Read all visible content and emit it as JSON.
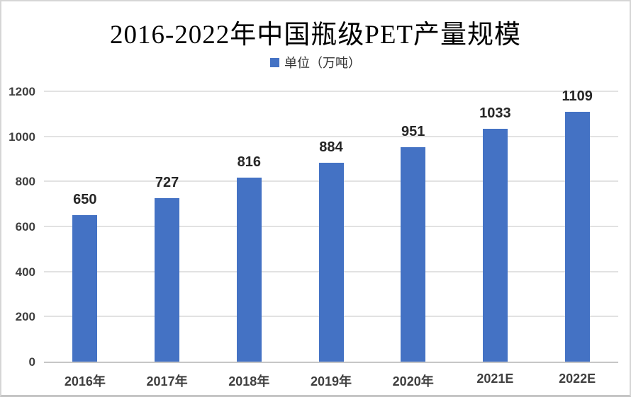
{
  "page": {
    "title": "2016-2022年中国瓶级PET产量规模",
    "legend_label": "单位（万吨）"
  },
  "colors": {
    "bar": "#4472C4",
    "legend_marker": "#4472C4",
    "title_text": "#000000",
    "data_label": "#262626",
    "axis_label": "#3f3f3f",
    "gridline": "#e2e2e2",
    "axis_line": "#c6c6c6",
    "background": "#ffffff"
  },
  "chart_data": {
    "type": "bar",
    "title": "2016-2022年中国瓶级PET产量规模",
    "legend": [
      "单位（万吨）"
    ],
    "legend_position": "top-center",
    "categories": [
      "2016年",
      "2017年",
      "2018年",
      "2019年",
      "2020年",
      "2021E",
      "2022E"
    ],
    "values": [
      650,
      727,
      816,
      884,
      951,
      1033,
      1109
    ],
    "data_labels": [
      650,
      727,
      816,
      884,
      951,
      1033,
      1109
    ],
    "xlabel": "",
    "ylabel": "",
    "ylim": [
      0,
      1200
    ],
    "yticks": [
      0,
      200,
      400,
      600,
      800,
      1000,
      1200
    ],
    "grid": true
  }
}
